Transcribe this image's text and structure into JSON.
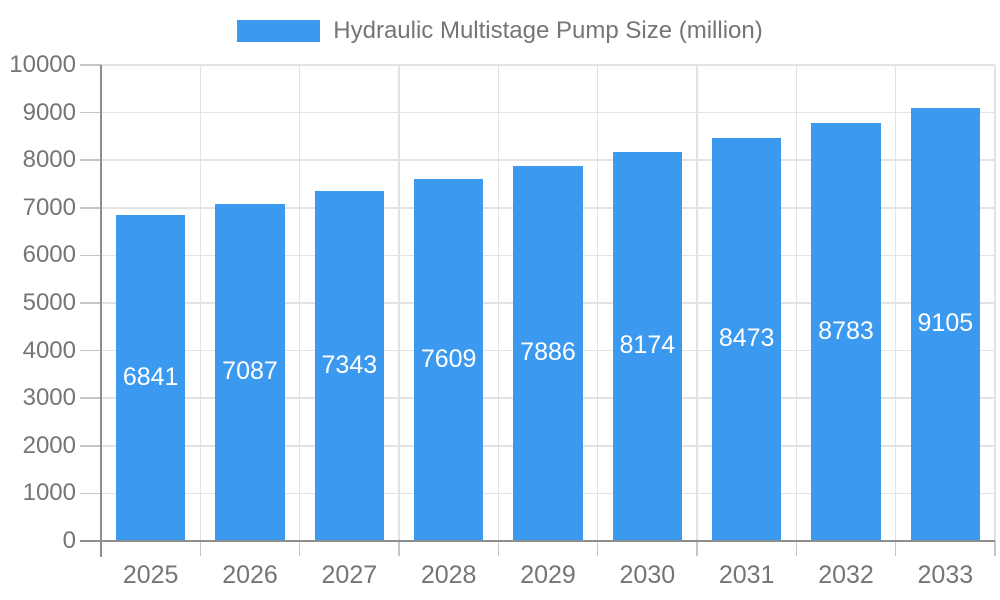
{
  "legend": {
    "label": "Hydraulic Multistage Pump Size (million)"
  },
  "colors": {
    "bar": "#3B9AF0",
    "grid": "#E3E3E3",
    "axis": "#8E8E8E",
    "tick": "#C6C6C6",
    "text": "#757575",
    "value_label": "#FFFFFF",
    "background": "#FFFFFF"
  },
  "chart_data": {
    "type": "bar",
    "title": "Hydraulic Multistage Pump Size (million)",
    "categories": [
      "2025",
      "2026",
      "2027",
      "2028",
      "2029",
      "2030",
      "2031",
      "2032",
      "2033"
    ],
    "values": [
      6841,
      7087,
      7343,
      7609,
      7886,
      8174,
      8473,
      8783,
      9105
    ],
    "xlabel": "",
    "ylabel": "",
    "ylim": [
      0,
      10000
    ],
    "ytick_step": 1000,
    "yticks": [
      0,
      1000,
      2000,
      3000,
      4000,
      5000,
      6000,
      7000,
      8000,
      9000,
      10000
    ],
    "grid": true,
    "legend_position": "top-center",
    "value_labels_position": "inside-center",
    "bar_width_fraction": 0.7
  }
}
